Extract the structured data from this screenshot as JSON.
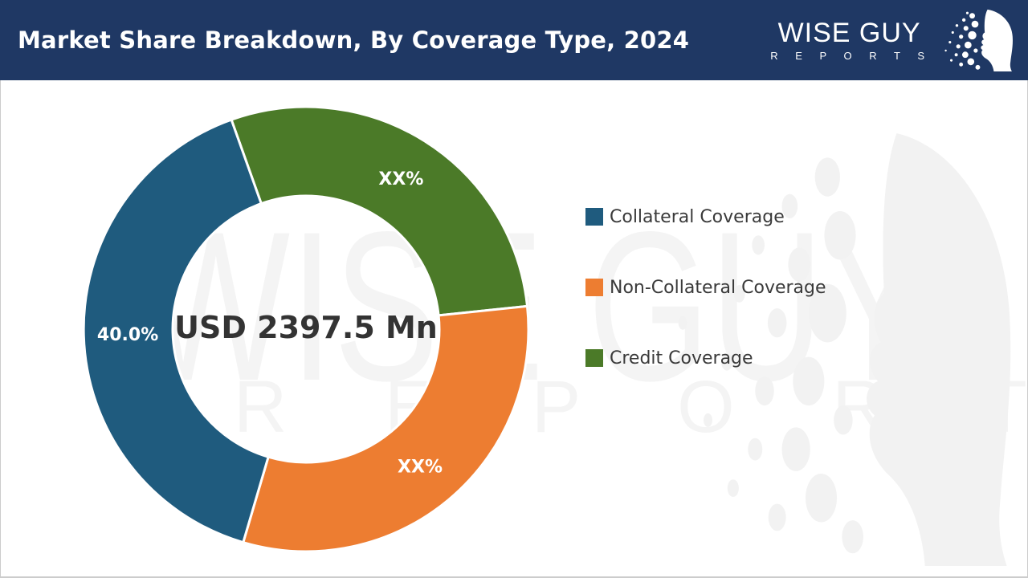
{
  "header": {
    "title": "Market Share Breakdown, By Coverage Type, 2024",
    "logo": {
      "line1": "WISE GUY",
      "line2": "R E P O R T S"
    }
  },
  "watermark": {
    "line1": "WISE GUY",
    "line2": "R E P O R T S"
  },
  "colors": {
    "header_background": "#1F3864",
    "collateral_blue": "#1F5B7E",
    "non_collateral_orange": "#ED7D31",
    "credit_green": "#4B7A28",
    "center_text": "#333333",
    "watermark_gray": "#f2f2f2",
    "border_gray": "#cccccc"
  },
  "chart_data": {
    "type": "pie",
    "variant": "donut",
    "title": "Market Share Breakdown, By Coverage Type, 2024",
    "center_label": "USD 2397.5 Mn",
    "start_angle_from_north_deg": -19.6,
    "inner_radius_ratio": 0.6,
    "legend_position": "right",
    "segments": [
      {
        "name": "Credit Coverage",
        "value": 28.8,
        "display_label": "XX%",
        "color": "#4B7A28"
      },
      {
        "name": "Non-Collateral Coverage",
        "value": 31.2,
        "display_label": "XX%",
        "color": "#ED7D31"
      },
      {
        "name": "Collateral Coverage",
        "value": 40.0,
        "display_label": "40.0%",
        "color": "#1F5B7E"
      }
    ],
    "legend": [
      {
        "label": "Collateral Coverage",
        "color": "#1F5B7E"
      },
      {
        "label": "Non-Collateral Coverage",
        "color": "#ED7D31"
      },
      {
        "label": "Credit Coverage",
        "color": "#4B7A28"
      }
    ]
  }
}
